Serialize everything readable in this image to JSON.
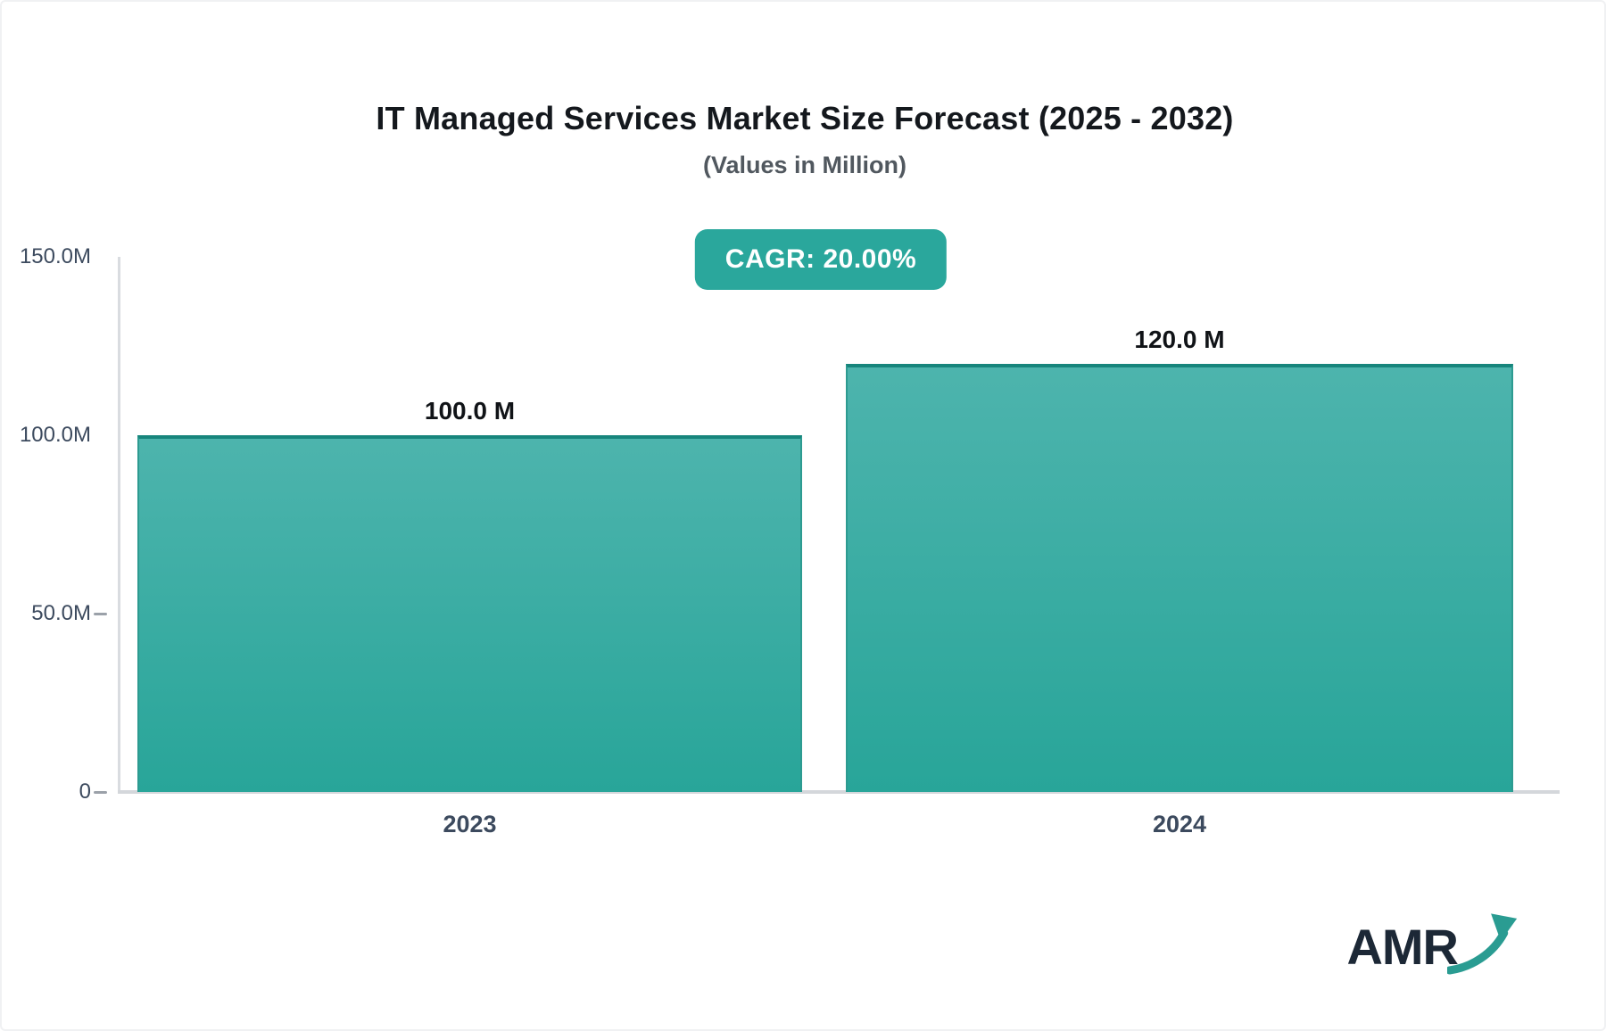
{
  "header": {
    "title": "IT Managed Services Market Size Forecast (2025 - 2032)",
    "subtitle": "(Values in Million)"
  },
  "badge": {
    "label": "CAGR: 20.00%",
    "bg_color": "#2aa79c",
    "text_color": "#ffffff"
  },
  "chart_data": {
    "type": "bar",
    "title": "IT Managed Services Market Size Forecast (2025 - 2032)",
    "subtitle": "(Values in Million)",
    "unit": "Million",
    "categories": [
      "2023",
      "2024"
    ],
    "values": [
      100,
      120
    ],
    "bar_value_labels": [
      "100.0 M",
      "120.0 M"
    ],
    "cagr": "20.00%",
    "ylim": [
      0,
      150
    ],
    "y_ticks": [
      {
        "label": "150.0M",
        "value": 150,
        "dash": false
      },
      {
        "label": "100.0M",
        "value": 100,
        "dash": false
      },
      {
        "label": "50.0M",
        "value": 50,
        "dash": true
      },
      {
        "label": "0",
        "value": 0,
        "dash": true
      }
    ],
    "grid": false,
    "legend": "none",
    "bar_gradient_top": "#4db4ad",
    "bar_gradient_bottom": "#28a599",
    "bar_border_color": "#17857c",
    "bar_side_border_color": "#2d9b91",
    "axis_line_color": "#d6d9dd",
    "label_color": "#3c4a5e"
  },
  "logo": {
    "text": "AMR",
    "arrow_color": "#2a9c92"
  }
}
